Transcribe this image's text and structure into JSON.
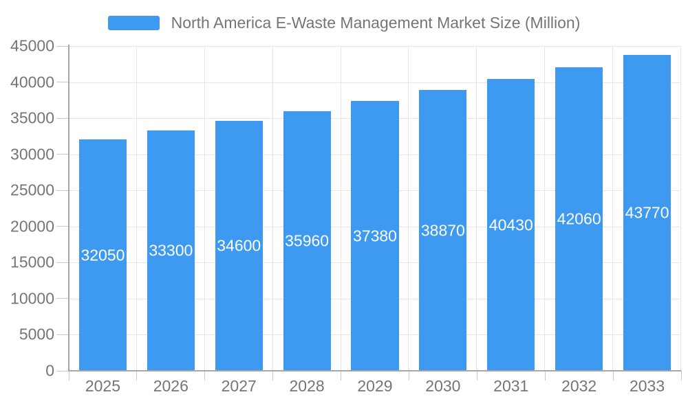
{
  "legend": {
    "label": "North America E-Waste Management Market Size (Million)"
  },
  "chart_data": {
    "type": "bar",
    "title": "North America E-Waste Management Market Size (Million)",
    "categories": [
      "2025",
      "2026",
      "2027",
      "2028",
      "2029",
      "2030",
      "2031",
      "2032",
      "2033"
    ],
    "values": [
      32050,
      33300,
      34600,
      35960,
      37380,
      38870,
      40430,
      42060,
      43770
    ],
    "bar_labels": [
      "32050",
      "33300",
      "34600",
      "35960",
      "37380",
      "38870",
      "40430",
      "42060",
      "43770"
    ],
    "xlabel": "",
    "ylabel": "",
    "ylim": [
      0,
      45000
    ],
    "yticks": [
      0,
      5000,
      10000,
      15000,
      20000,
      25000,
      30000,
      35000,
      40000,
      45000
    ],
    "ytick_labels": [
      "0",
      "5000",
      "10000",
      "15000",
      "20000",
      "25000",
      "30000",
      "35000",
      "40000",
      "45000"
    ],
    "grid": "horizontal-and-vertical",
    "legend_position": "top-center",
    "bar_label_position": "inside-center",
    "bar_width_fraction": 0.7,
    "colors": {
      "bar": "#3D9AF0",
      "grid": "#e6e6e6",
      "axis": "#a6a6a6",
      "tick": "#c9c9c9",
      "label": "#757575",
      "bar_label": "#ffffff",
      "background": "#ffffff"
    }
  }
}
